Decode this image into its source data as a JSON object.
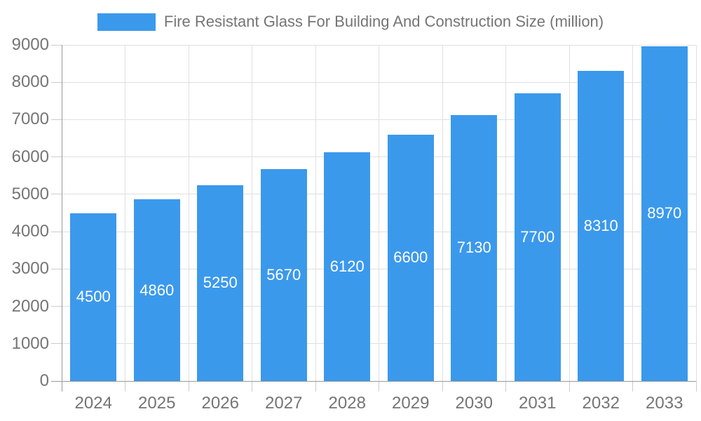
{
  "chart_data": {
    "type": "bar",
    "title": "Fire Resistant Glass For Building And Construction Size (million)",
    "legend": {
      "position": "top",
      "entries": [
        {
          "label": "Fire Resistant Glass For Building And Construction Size (million)",
          "color": "#3b99ec"
        }
      ]
    },
    "categories": [
      "2024",
      "2025",
      "2026",
      "2027",
      "2028",
      "2029",
      "2030",
      "2031",
      "2032",
      "2033"
    ],
    "series": [
      {
        "name": "Fire Resistant Glass For Building And Construction Size (million)",
        "values": [
          4500,
          4860,
          5250,
          5670,
          6120,
          6600,
          7130,
          7700,
          8310,
          8970
        ]
      }
    ],
    "data_labels": [
      "4500",
      "4860",
      "5250",
      "5670",
      "6120",
      "6600",
      "7130",
      "7700",
      "8310",
      "8970"
    ],
    "xlabel": "",
    "ylabel": "",
    "ylim": [
      0,
      9000
    ],
    "y_tick_labels": [
      "0",
      "1000",
      "2000",
      "3000",
      "4000",
      "5000",
      "6000",
      "7000",
      "8000",
      "9000"
    ],
    "grid": true,
    "colors": {
      "bar": "#3b99ec",
      "bar_value_label": "#ffffff",
      "axis_text": "#757575",
      "legend_text": "#757575",
      "gridline": "#e0e0e0",
      "axis_line": "#999999",
      "tick_mark": "#cccccc",
      "background": "#ffffff"
    }
  }
}
